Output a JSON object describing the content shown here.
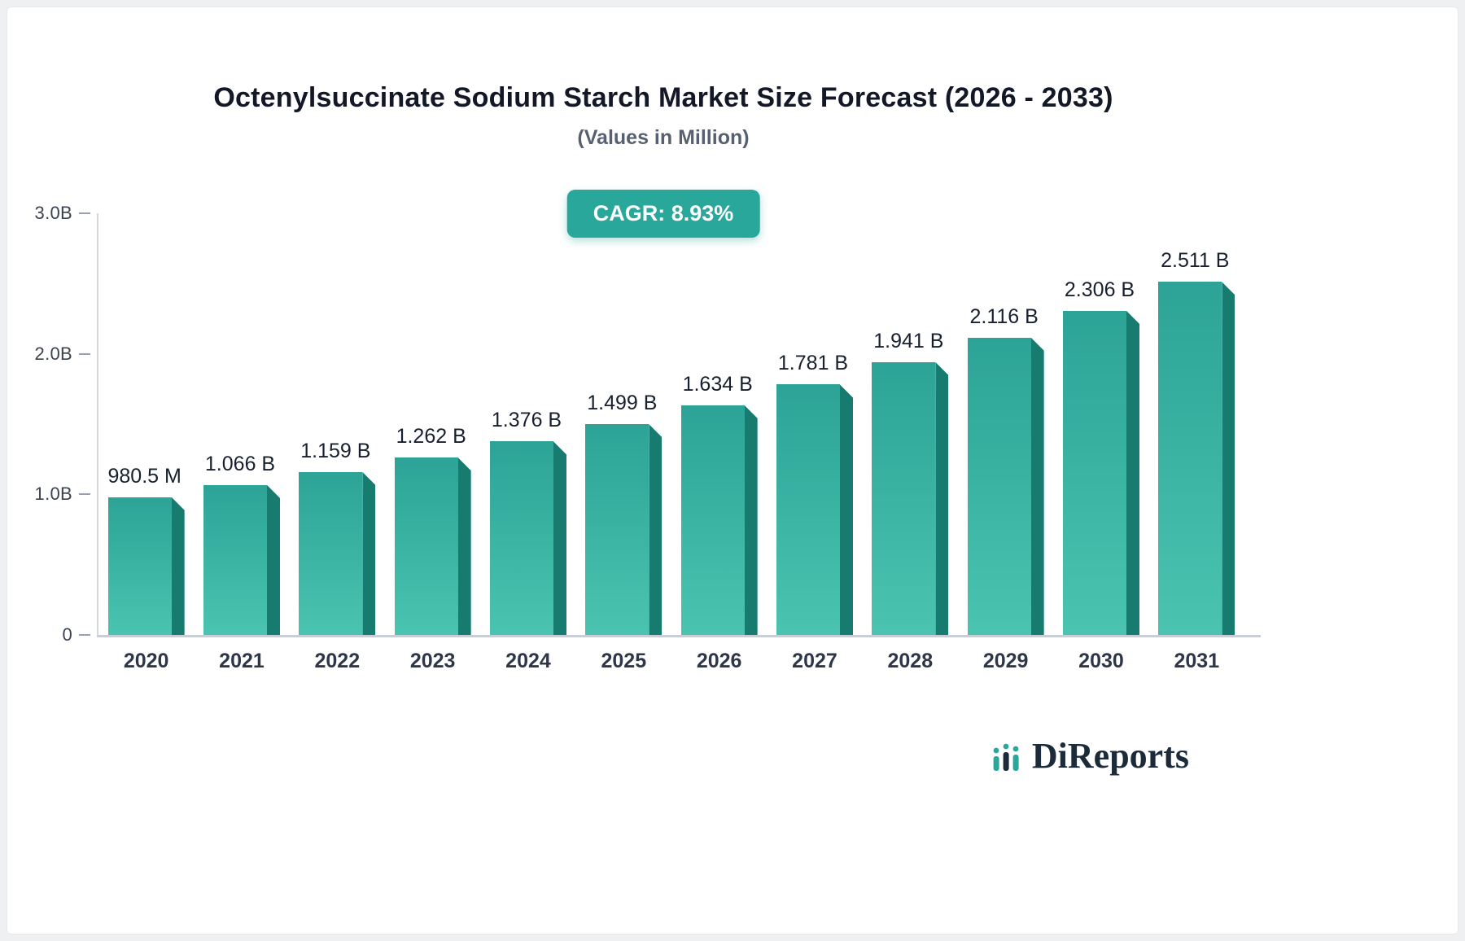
{
  "chart_data": {
    "type": "bar",
    "title": "Octenylsuccinate Sodium Starch Market Size Forecast (2026 - 2033)",
    "subtitle": "(Values in Million)",
    "cagr_label": "CAGR: 8.93%",
    "categories": [
      "2020",
      "2021",
      "2022",
      "2023",
      "2024",
      "2025",
      "2026",
      "2027",
      "2028",
      "2029",
      "2030",
      "2031"
    ],
    "values_billions": [
      0.9805,
      1.066,
      1.159,
      1.262,
      1.376,
      1.499,
      1.634,
      1.781,
      1.941,
      2.116,
      2.306,
      2.511
    ],
    "bar_labels": [
      "980.5 M",
      "1.066 B",
      "1.159 B",
      "1.262 B",
      "1.376 B",
      "1.499 B",
      "1.634 B",
      "1.781 B",
      "1.941 B",
      "2.116 B",
      "2.306 B",
      "2.511 B"
    ],
    "xlabel": "",
    "ylabel": "",
    "ylim": [
      0,
      3
    ],
    "yticks": [
      {
        "label": "3.0B",
        "value": 3
      },
      {
        "label": "2.0B",
        "value": 2
      },
      {
        "label": "1.0B",
        "value": 1
      },
      {
        "label": "0",
        "value": 0
      }
    ],
    "grid": false,
    "legend": "none",
    "colors": {
      "bar_top": "#2ca396",
      "bar_bottom": "#4ac4b1",
      "bar_side": "#177b70",
      "accent": "#2aa79b"
    }
  },
  "logo": {
    "text": "DiReports"
  }
}
